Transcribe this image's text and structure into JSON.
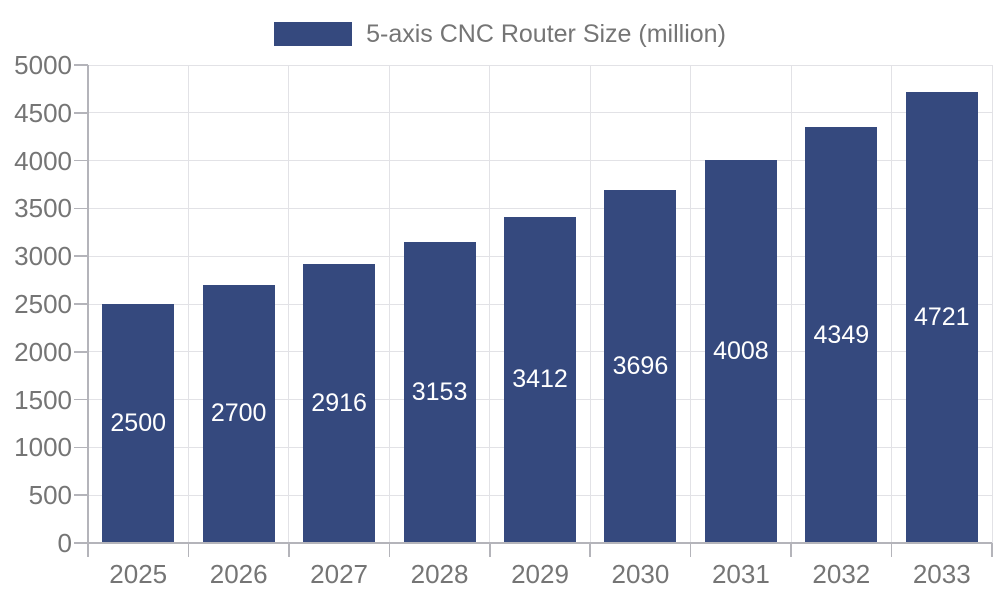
{
  "page": {
    "background": "#ffffff"
  },
  "chart_data": {
    "type": "bar",
    "title": "5-axis CNC Router Size (million)",
    "legend_entries": [
      "5-axis CNC Router Size (million)"
    ],
    "legend_position": "top-center",
    "categories": [
      "2025",
      "2026",
      "2027",
      "2028",
      "2029",
      "2030",
      "2031",
      "2032",
      "2033"
    ],
    "series": [
      {
        "name": "5-axis CNC Router Size (million)",
        "values": [
          2500,
          2700,
          2916,
          3153,
          3412,
          3696,
          4008,
          4349,
          4721
        ]
      }
    ],
    "value_labels_shown": true,
    "xlabel": "",
    "ylabel": "",
    "ylim": [
      0,
      5000
    ],
    "yticks": [
      0,
      500,
      1000,
      1500,
      2000,
      2500,
      3000,
      3500,
      4000,
      4500,
      5000
    ],
    "grid": true,
    "colors": {
      "bar": "#35497e",
      "value_label": "#ffffff",
      "axis_text": "#757575",
      "axis_line": "#b4b4ba",
      "gridline": "#e2e2e6",
      "background": "#ffffff"
    }
  }
}
